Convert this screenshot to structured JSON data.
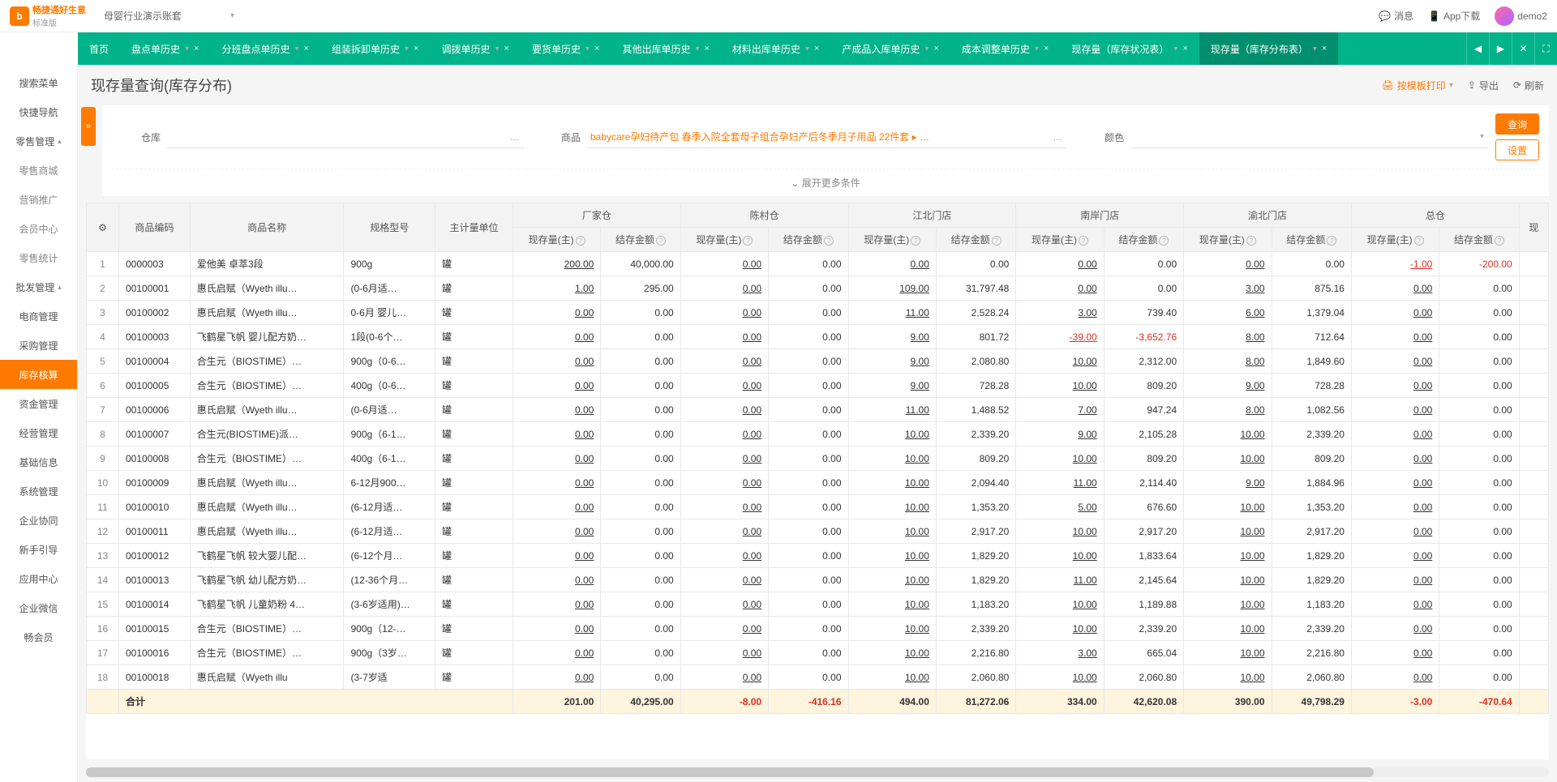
{
  "top": {
    "logo_text": "畅捷通好生意",
    "logo_sub": "标准版",
    "account": "母婴行业演示账套",
    "msg": "消息",
    "appdl": "App下载",
    "user": "demo2"
  },
  "tabs": [
    {
      "label": "首页",
      "closable": false
    },
    {
      "label": "盘点单历史",
      "closable": true
    },
    {
      "label": "分班盘点单历史",
      "closable": true
    },
    {
      "label": "组装拆卸单历史",
      "closable": true
    },
    {
      "label": "调拨单历史",
      "closable": true
    },
    {
      "label": "要货单历史",
      "closable": true
    },
    {
      "label": "其他出库单历史",
      "closable": true
    },
    {
      "label": "材料出库单历史",
      "closable": true
    },
    {
      "label": "产成品入库单历史",
      "closable": true
    },
    {
      "label": "成本调整单历史",
      "closable": true
    },
    {
      "label": "现存量（库存状况表）",
      "closable": true
    },
    {
      "label": "现存量（库存分布表）",
      "closable": true,
      "active": true
    }
  ],
  "sidebar": [
    {
      "label": "搜索菜单",
      "type": "item"
    },
    {
      "label": "快捷导航",
      "type": "item"
    },
    {
      "label": "零售管理",
      "type": "item",
      "expand": true
    },
    {
      "label": "零售商城",
      "type": "sub"
    },
    {
      "label": "营销推广",
      "type": "sub"
    },
    {
      "label": "会员中心",
      "type": "sub"
    },
    {
      "label": "零售统计",
      "type": "sub"
    },
    {
      "label": "批发管理",
      "type": "item",
      "expand": true
    },
    {
      "label": "电商管理",
      "type": "item"
    },
    {
      "label": "采购管理",
      "type": "item"
    },
    {
      "label": "库存核算",
      "type": "item",
      "active": true
    },
    {
      "label": "资金管理",
      "type": "item"
    },
    {
      "label": "经营管理",
      "type": "item"
    },
    {
      "label": "基础信息",
      "type": "item"
    },
    {
      "label": "系统管理",
      "type": "item"
    },
    {
      "label": "企业协同",
      "type": "item"
    },
    {
      "label": "新手引导",
      "type": "item"
    },
    {
      "label": "应用中心",
      "type": "item"
    },
    {
      "label": "企业微信",
      "type": "item"
    },
    {
      "label": "畅会员",
      "type": "item"
    }
  ],
  "page": {
    "title": "现存量查询(库存分布)",
    "print": "按模板打印",
    "export": "导出",
    "refresh": "刷新"
  },
  "filter": {
    "warehouse_label": "仓库",
    "product_label": "商品",
    "product_value": "babycare孕妇待产包 春季入院全套母子组合孕妇产后冬季月子用品 22件套 ▸ …",
    "color_label": "颜色",
    "query": "查询",
    "settings": "设置",
    "expand": "展开更多条件"
  },
  "table": {
    "gear": "⚙",
    "cols_fixed": [
      "商品编码",
      "商品名称",
      "规格型号",
      "主计量单位"
    ],
    "groups": [
      "厂家仓",
      "陈村仓",
      "江北门店",
      "南岸门店",
      "渝北门店",
      "总仓"
    ],
    "sub_cols": [
      "现存量(主)",
      "结存金额"
    ],
    "extra_col": "现",
    "rows": [
      {
        "idx": 1,
        "code": "0000003",
        "name": "爱他美 卓萃3段",
        "spec": "900g",
        "unit": "罐",
        "v": [
          [
            "200.00",
            "40,000.00"
          ],
          [
            "0.00",
            "0.00"
          ],
          [
            "0.00",
            "0.00"
          ],
          [
            "0.00",
            "0.00"
          ],
          [
            "0.00",
            "0.00"
          ],
          [
            "-1.00",
            "-200.00"
          ]
        ]
      },
      {
        "idx": 2,
        "code": "00100001",
        "name": "惠氏启赋（Wyeth illu…",
        "spec": "(0-6月适…",
        "unit": "罐",
        "v": [
          [
            "1.00",
            "295.00"
          ],
          [
            "0.00",
            "0.00"
          ],
          [
            "109.00",
            "31,797.48"
          ],
          [
            "0.00",
            "0.00"
          ],
          [
            "3.00",
            "875.16"
          ],
          [
            "0.00",
            "0.00"
          ]
        ]
      },
      {
        "idx": 3,
        "code": "00100002",
        "name": "惠氏启赋（Wyeth illu…",
        "spec": "0-6月 婴儿…",
        "unit": "罐",
        "v": [
          [
            "0.00",
            "0.00"
          ],
          [
            "0.00",
            "0.00"
          ],
          [
            "11.00",
            "2,528.24"
          ],
          [
            "3.00",
            "739.40"
          ],
          [
            "6.00",
            "1,379.04"
          ],
          [
            "0.00",
            "0.00"
          ]
        ]
      },
      {
        "idx": 4,
        "code": "00100003",
        "name": "飞鹤星飞帆 婴儿配方奶…",
        "spec": "1段(0-6个…",
        "unit": "罐",
        "v": [
          [
            "0.00",
            "0.00"
          ],
          [
            "0.00",
            "0.00"
          ],
          [
            "9.00",
            "801.72"
          ],
          [
            "-39.00",
            "-3,652.76"
          ],
          [
            "8.00",
            "712.64"
          ],
          [
            "0.00",
            "0.00"
          ]
        ]
      },
      {
        "idx": 5,
        "code": "00100004",
        "name": "合生元（BIOSTIME）…",
        "spec": "900g（0-6…",
        "unit": "罐",
        "v": [
          [
            "0.00",
            "0.00"
          ],
          [
            "0.00",
            "0.00"
          ],
          [
            "9.00",
            "2,080.80"
          ],
          [
            "10.00",
            "2,312.00"
          ],
          [
            "8.00",
            "1,849.60"
          ],
          [
            "0.00",
            "0.00"
          ]
        ]
      },
      {
        "idx": 6,
        "code": "00100005",
        "name": "合生元（BIOSTIME）…",
        "spec": "400g（0-6…",
        "unit": "罐",
        "v": [
          [
            "0.00",
            "0.00"
          ],
          [
            "0.00",
            "0.00"
          ],
          [
            "9.00",
            "728.28"
          ],
          [
            "10.00",
            "809.20"
          ],
          [
            "9.00",
            "728.28"
          ],
          [
            "0.00",
            "0.00"
          ]
        ]
      },
      {
        "idx": 7,
        "code": "00100006",
        "name": "惠氏启赋（Wyeth illu…",
        "spec": "(0-6月适…",
        "unit": "罐",
        "v": [
          [
            "0.00",
            "0.00"
          ],
          [
            "0.00",
            "0.00"
          ],
          [
            "11.00",
            "1,488.52"
          ],
          [
            "7.00",
            "947.24"
          ],
          [
            "8.00",
            "1,082.56"
          ],
          [
            "0.00",
            "0.00"
          ]
        ]
      },
      {
        "idx": 8,
        "code": "00100007",
        "name": "合生元(BIOSTIME)派…",
        "spec": "900g（6-1…",
        "unit": "罐",
        "v": [
          [
            "0.00",
            "0.00"
          ],
          [
            "0.00",
            "0.00"
          ],
          [
            "10.00",
            "2,339.20"
          ],
          [
            "9.00",
            "2,105.28"
          ],
          [
            "10.00",
            "2,339.20"
          ],
          [
            "0.00",
            "0.00"
          ]
        ]
      },
      {
        "idx": 9,
        "code": "00100008",
        "name": "合生元（BIOSTIME）…",
        "spec": "400g（6-1…",
        "unit": "罐",
        "v": [
          [
            "0.00",
            "0.00"
          ],
          [
            "0.00",
            "0.00"
          ],
          [
            "10.00",
            "809.20"
          ],
          [
            "10.00",
            "809.20"
          ],
          [
            "10.00",
            "809.20"
          ],
          [
            "0.00",
            "0.00"
          ]
        ]
      },
      {
        "idx": 10,
        "code": "00100009",
        "name": "惠氏启赋（Wyeth illu…",
        "spec": "6-12月900…",
        "unit": "罐",
        "v": [
          [
            "0.00",
            "0.00"
          ],
          [
            "0.00",
            "0.00"
          ],
          [
            "10.00",
            "2,094.40"
          ],
          [
            "11.00",
            "2,114.40"
          ],
          [
            "9.00",
            "1,884.96"
          ],
          [
            "0.00",
            "0.00"
          ]
        ]
      },
      {
        "idx": 11,
        "code": "00100010",
        "name": "惠氏启赋（Wyeth illu…",
        "spec": "(6-12月适…",
        "unit": "罐",
        "v": [
          [
            "0.00",
            "0.00"
          ],
          [
            "0.00",
            "0.00"
          ],
          [
            "10.00",
            "1,353.20"
          ],
          [
            "5.00",
            "676.60"
          ],
          [
            "10.00",
            "1,353.20"
          ],
          [
            "0.00",
            "0.00"
          ]
        ]
      },
      {
        "idx": 12,
        "code": "00100011",
        "name": "惠氏启赋（Wyeth illu…",
        "spec": "(6-12月适…",
        "unit": "罐",
        "v": [
          [
            "0.00",
            "0.00"
          ],
          [
            "0.00",
            "0.00"
          ],
          [
            "10.00",
            "2,917.20"
          ],
          [
            "10.00",
            "2,917.20"
          ],
          [
            "10.00",
            "2,917.20"
          ],
          [
            "0.00",
            "0.00"
          ]
        ]
      },
      {
        "idx": 13,
        "code": "00100012",
        "name": "飞鹤星飞帆 较大婴儿配…",
        "spec": "(6-12个月…",
        "unit": "罐",
        "v": [
          [
            "0.00",
            "0.00"
          ],
          [
            "0.00",
            "0.00"
          ],
          [
            "10.00",
            "1,829.20"
          ],
          [
            "10.00",
            "1,833.64"
          ],
          [
            "10.00",
            "1,829.20"
          ],
          [
            "0.00",
            "0.00"
          ]
        ]
      },
      {
        "idx": 14,
        "code": "00100013",
        "name": "飞鹤星飞帆 幼儿配方奶…",
        "spec": "(12-36个月…",
        "unit": "罐",
        "v": [
          [
            "0.00",
            "0.00"
          ],
          [
            "0.00",
            "0.00"
          ],
          [
            "10.00",
            "1,829.20"
          ],
          [
            "11.00",
            "2,145.64"
          ],
          [
            "10.00",
            "1,829.20"
          ],
          [
            "0.00",
            "0.00"
          ]
        ]
      },
      {
        "idx": 15,
        "code": "00100014",
        "name": "飞鹤星飞帆 儿童奶粉 4…",
        "spec": "(3-6岁适用)…",
        "unit": "罐",
        "v": [
          [
            "0.00",
            "0.00"
          ],
          [
            "0.00",
            "0.00"
          ],
          [
            "10.00",
            "1,183.20"
          ],
          [
            "10.00",
            "1,189.88"
          ],
          [
            "10.00",
            "1,183.20"
          ],
          [
            "0.00",
            "0.00"
          ]
        ]
      },
      {
        "idx": 16,
        "code": "00100015",
        "name": "合生元（BIOSTIME）…",
        "spec": "900g（12-…",
        "unit": "罐",
        "v": [
          [
            "0.00",
            "0.00"
          ],
          [
            "0.00",
            "0.00"
          ],
          [
            "10.00",
            "2,339.20"
          ],
          [
            "10.00",
            "2,339.20"
          ],
          [
            "10.00",
            "2,339.20"
          ],
          [
            "0.00",
            "0.00"
          ]
        ]
      },
      {
        "idx": 17,
        "code": "00100016",
        "name": "合生元（BIOSTIME）…",
        "spec": "900g（3岁…",
        "unit": "罐",
        "v": [
          [
            "0.00",
            "0.00"
          ],
          [
            "0.00",
            "0.00"
          ],
          [
            "10.00",
            "2,216.80"
          ],
          [
            "3.00",
            "665.04"
          ],
          [
            "10.00",
            "2,216.80"
          ],
          [
            "0.00",
            "0.00"
          ]
        ]
      },
      {
        "idx": 18,
        "code": "00100018",
        "name": "惠氏启赋（Wyeth illu",
        "spec": "(3-7岁适",
        "unit": "罐",
        "v": [
          [
            "0.00",
            "0.00"
          ],
          [
            "0.00",
            "0.00"
          ],
          [
            "10.00",
            "2,060.80"
          ],
          [
            "10.00",
            "2,060.80"
          ],
          [
            "10.00",
            "2,060.80"
          ],
          [
            "0.00",
            "0.00"
          ]
        ]
      }
    ],
    "total_label": "合计",
    "totals": [
      [
        "201.00",
        "40,295.00"
      ],
      [
        "-8.00",
        "-416.16"
      ],
      [
        "494.00",
        "81,272.06"
      ],
      [
        "334.00",
        "42,620.08"
      ],
      [
        "390.00",
        "49,798.29"
      ],
      [
        "-3.00",
        "-470.64"
      ]
    ]
  }
}
